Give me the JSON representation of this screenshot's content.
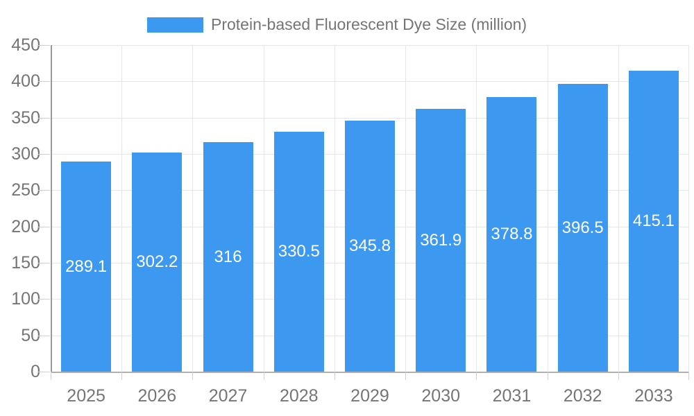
{
  "chart_data": {
    "type": "bar",
    "title": "Protein-based Fluorescent Dye Size (million)",
    "categories": [
      "2025",
      "2026",
      "2027",
      "2028",
      "2029",
      "2030",
      "2031",
      "2032",
      "2033"
    ],
    "values": [
      289.1,
      302.2,
      316,
      330.5,
      345.8,
      361.9,
      378.8,
      396.5,
      415.1
    ],
    "value_labels": [
      "289.1",
      "302.2",
      "316",
      "330.5",
      "345.8",
      "361.9",
      "378.8",
      "396.5",
      "415.1"
    ],
    "xlabel": "",
    "ylabel": "",
    "ylim": [
      0,
      450
    ],
    "y_step": 50,
    "y_tick_labels": [
      "0",
      "50",
      "100",
      "150",
      "200",
      "250",
      "300",
      "350",
      "400",
      "450"
    ],
    "grid": true,
    "legend_position": "top",
    "value_label_position": "center-inside",
    "colors": {
      "bar": "#3D99F0",
      "grid": "#E6E6E6",
      "axis": "#B0B0B0",
      "axis_strong": "#999999",
      "tick": "#CFCFCF",
      "text": "#757575",
      "value": "#FFFFFF"
    }
  }
}
